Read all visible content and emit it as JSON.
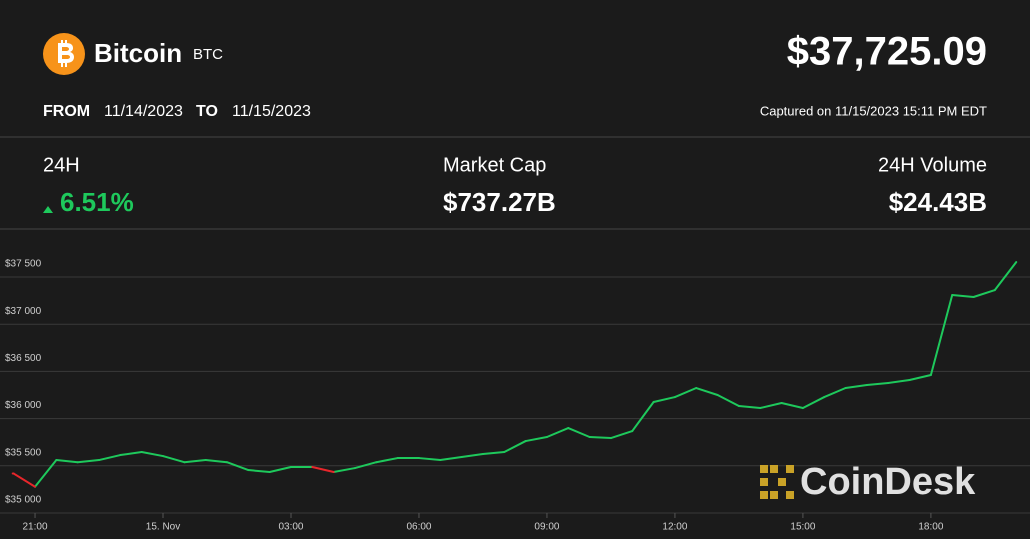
{
  "header": {
    "name": "Bitcoin",
    "symbol": "BTC",
    "price": "$37,725.09",
    "from_label": "FROM",
    "from_date": "11/14/2023",
    "to_label": "TO",
    "to_date": "11/15/2023",
    "captured": "Captured on 11/15/2023 15:11 PM EDT"
  },
  "stats": [
    {
      "label": "24H",
      "value": "6.51%"
    },
    {
      "label": "Market Cap",
      "value": "$737.27B"
    },
    {
      "label": "24H Volume",
      "value": "$24.43B"
    }
  ],
  "watermark": "CoinDesk",
  "chart_data": {
    "type": "line",
    "x": [
      "20:30",
      "21:00",
      "21:30",
      "22:00",
      "22:30",
      "23:00",
      "23:30",
      "00:00",
      "00:30",
      "01:00",
      "01:30",
      "02:00",
      "02:30",
      "03:00",
      "03:30",
      "04:00",
      "04:30",
      "05:00",
      "05:30",
      "06:00",
      "06:30",
      "07:00",
      "07:30",
      "08:00",
      "08:30",
      "09:00",
      "09:30",
      "10:00",
      "10:30",
      "11:00",
      "11:30",
      "12:00",
      "12:30",
      "13:00",
      "13:30",
      "14:00",
      "14:30",
      "15:00",
      "15:30",
      "16:00",
      "16:30",
      "17:00",
      "17:30",
      "18:00",
      "18:30",
      "19:00",
      "19:30",
      "20:00"
    ],
    "series": [
      {
        "color": "#1ec95c",
        "values": [
          null,
          null,
          35561,
          35538,
          35561,
          35614,
          35646,
          35603,
          35538,
          35561,
          35538,
          35455,
          35434,
          35487,
          35487,
          null,
          35476,
          35538,
          35582,
          35582,
          35561,
          35593,
          35625,
          35646,
          35762,
          35805,
          35900,
          35805,
          35794,
          35868,
          36176,
          36228,
          36324,
          36250,
          36133,
          36112,
          36165,
          36112,
          36228,
          36324,
          36356,
          36377,
          36409,
          36462,
          37309,
          37288,
          37362,
          37658
        ]
      },
      {
        "color": "#e8262b",
        "values": [
          35418,
          35278,
          null,
          null,
          null,
          null,
          null,
          null,
          null,
          null,
          null,
          null,
          null,
          null,
          null,
          35434,
          null,
          null,
          null,
          null,
          null,
          null,
          null,
          null,
          null,
          null,
          null,
          null,
          null,
          null,
          null,
          null,
          null,
          null,
          null,
          null,
          null,
          null,
          null,
          null,
          null,
          null,
          null,
          null,
          null,
          null,
          null,
          null
        ]
      }
    ],
    "ylim": [
      35000,
      38000
    ],
    "yticks": [
      {
        "value": 35000,
        "label": "$35 000"
      },
      {
        "value": 35500,
        "label": "$35 500"
      },
      {
        "value": 36000,
        "label": "$36 000"
      },
      {
        "value": 36500,
        "label": "$36 500"
      },
      {
        "value": 37000,
        "label": "$37 000"
      },
      {
        "value": 37500,
        "label": "$37 500"
      }
    ],
    "xticks": [
      "21:00",
      {
        "value": "00:00",
        "label": "15. Nov"
      },
      "03:00",
      "06:00",
      "09:00",
      "12:00",
      "15:00",
      "18:00"
    ],
    "grid": true
  }
}
